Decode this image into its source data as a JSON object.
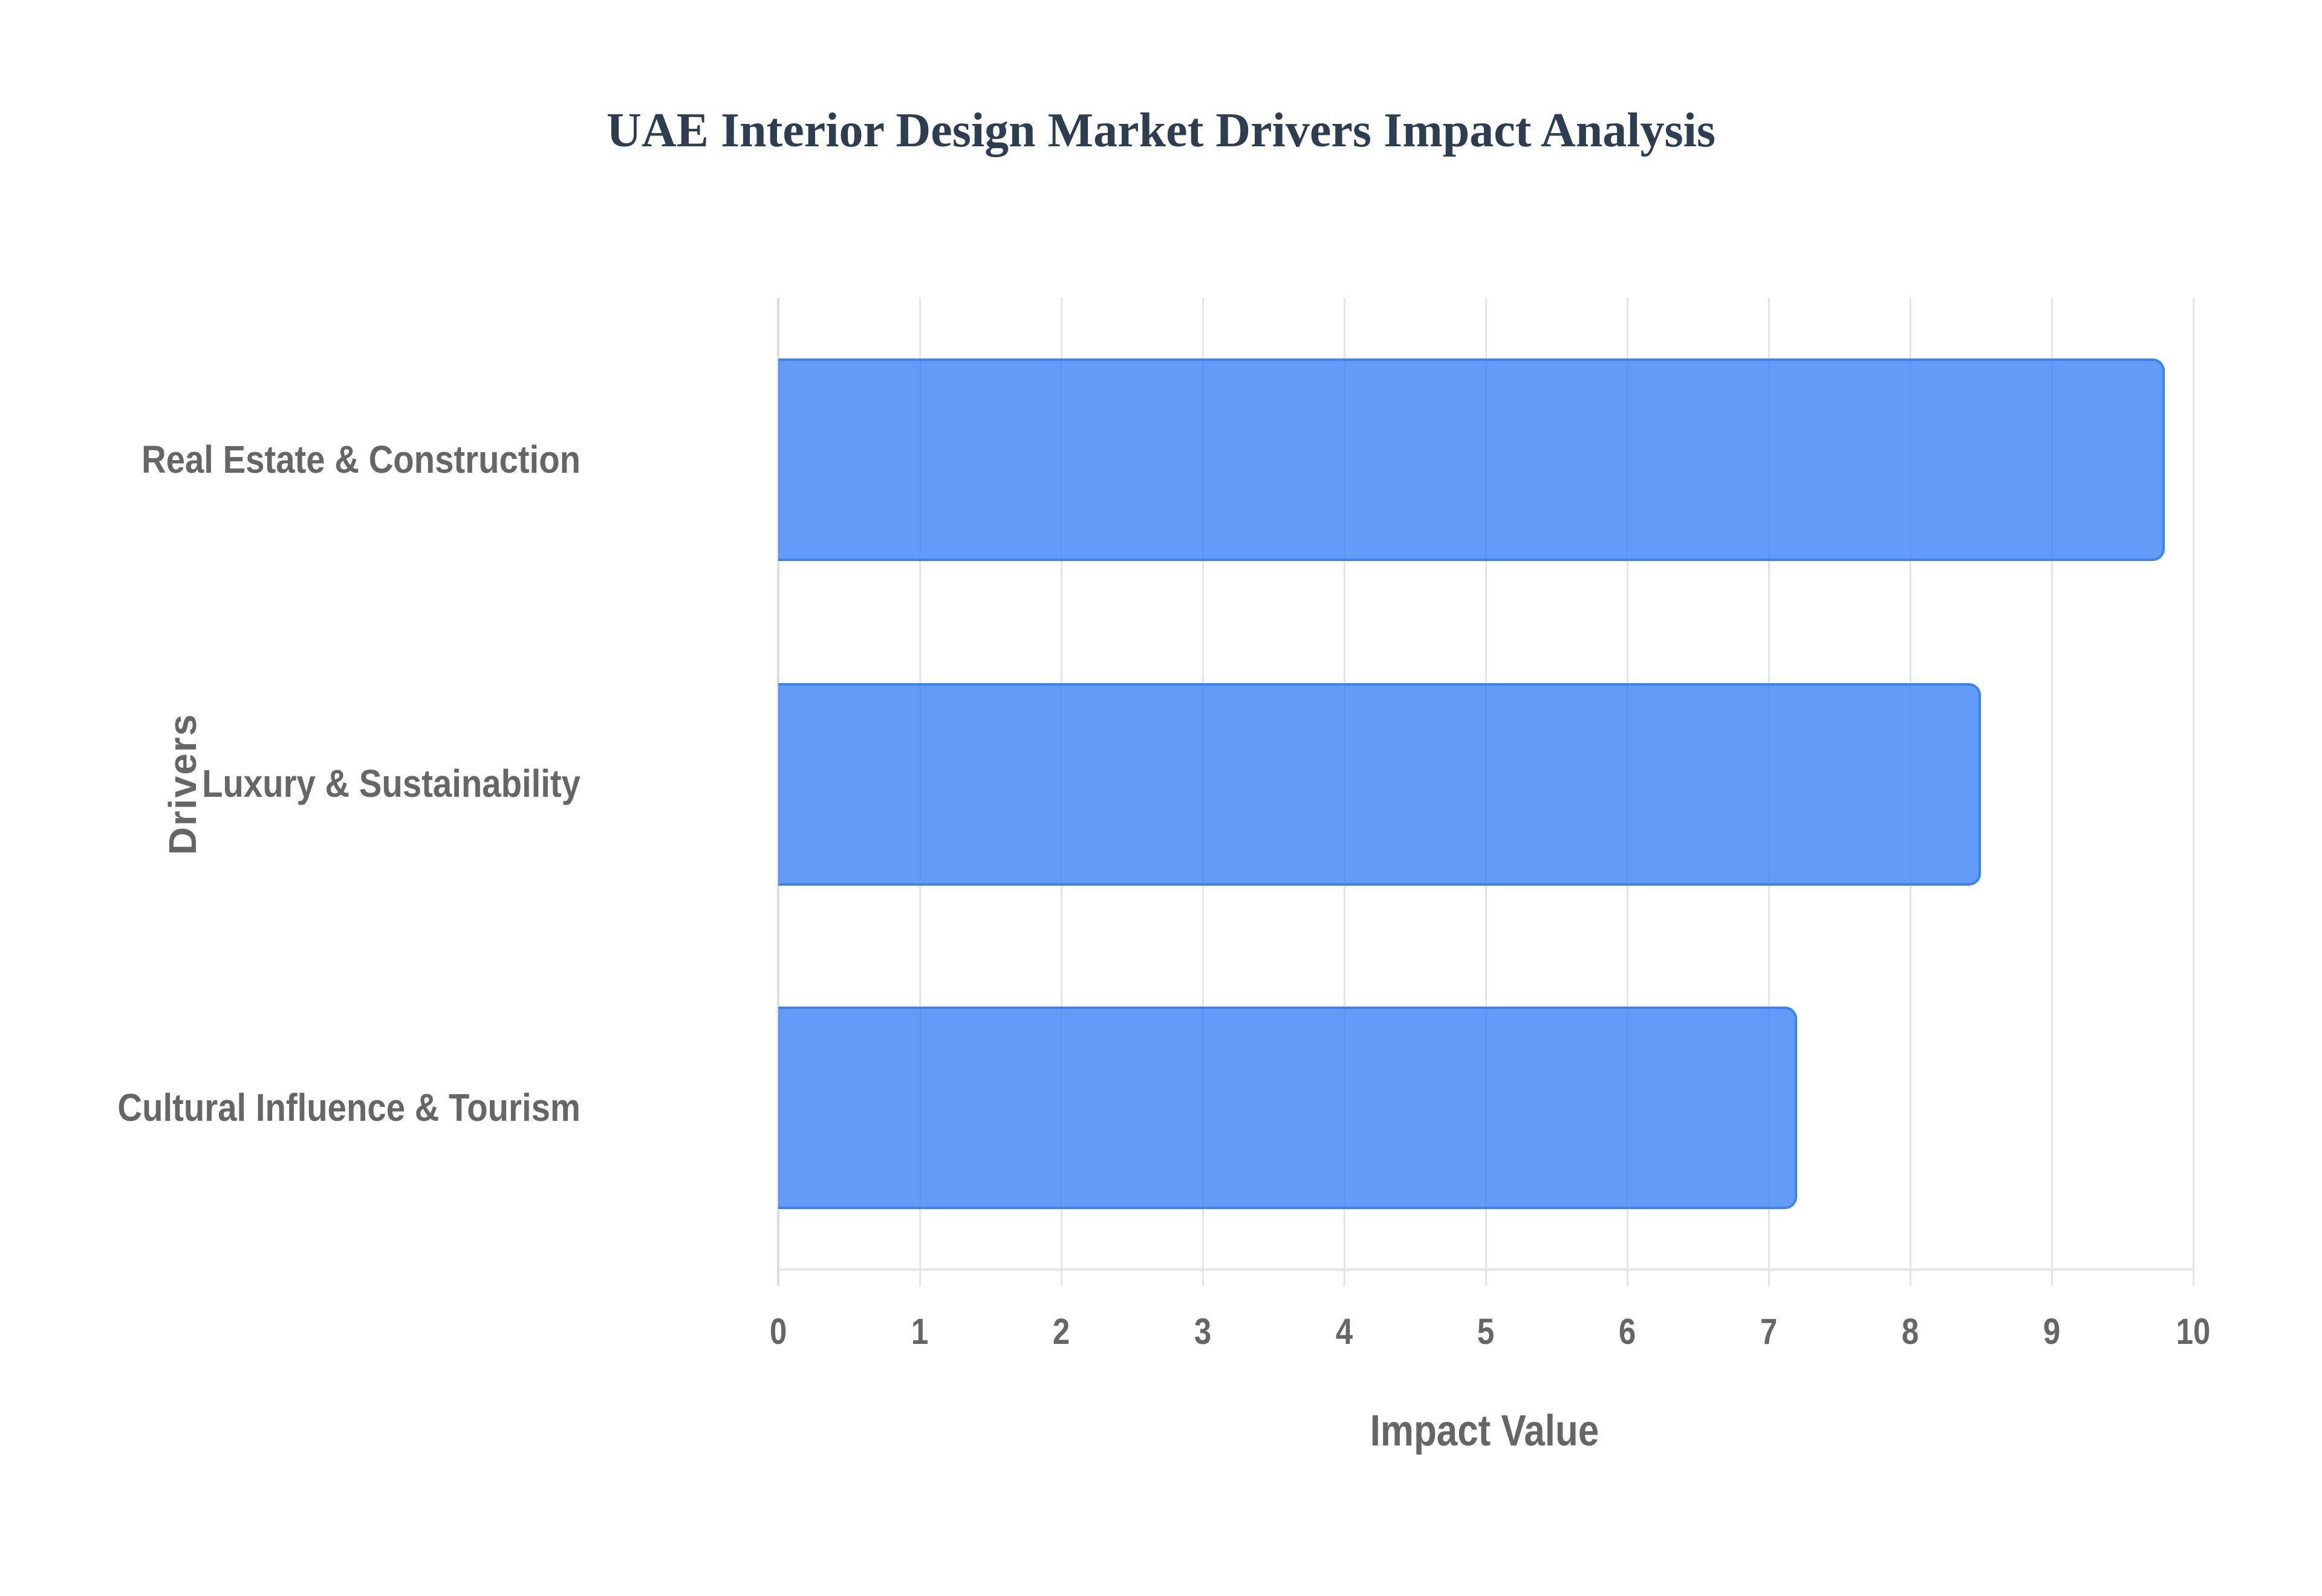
{
  "chart": {
    "title": "UAE Interior Design Market Drivers Impact Analysis",
    "xlabel": "Impact Value",
    "ylabel": "Drivers",
    "ticks": [
      "0",
      "1",
      "2",
      "3",
      "4",
      "5",
      "6",
      "7",
      "8",
      "9",
      "10"
    ],
    "categories": [
      "Real Estate & Construction",
      "Luxury & Sustainability",
      "Cultural Influence & Tourism"
    ],
    "bar_color": "#3b82f6",
    "bar_fill": "rgba(59,130,246,0.8)"
  },
  "chart_data": {
    "type": "bar",
    "orientation": "horizontal",
    "title": "UAE Interior Design Market Drivers Impact Analysis",
    "xlabel": "Impact Value",
    "ylabel": "Drivers",
    "categories": [
      "Real Estate & Construction",
      "Luxury & Sustainability",
      "Cultural Influence & Tourism"
    ],
    "values": [
      9.8,
      8.5,
      7.2
    ],
    "xlim": [
      0,
      10
    ],
    "xticks": [
      0,
      1,
      2,
      3,
      4,
      5,
      6,
      7,
      8,
      9,
      10
    ],
    "grid": true,
    "legend": null,
    "colors": [
      "#3b82f6"
    ]
  }
}
